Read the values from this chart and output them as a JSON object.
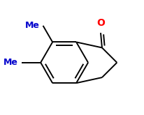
{
  "background_color": "#ffffff",
  "bond_color": "#000000",
  "oxygen_color": "#ff0000",
  "text_color": "#0000cc",
  "me_fontsize": 9,
  "o_fontsize": 10,
  "line_width": 1.4,
  "figsize": [
    2.07,
    1.65
  ],
  "dpi": 100,
  "xlim": [
    0.0,
    2.07
  ],
  "ylim": [
    0.0,
    1.65
  ]
}
